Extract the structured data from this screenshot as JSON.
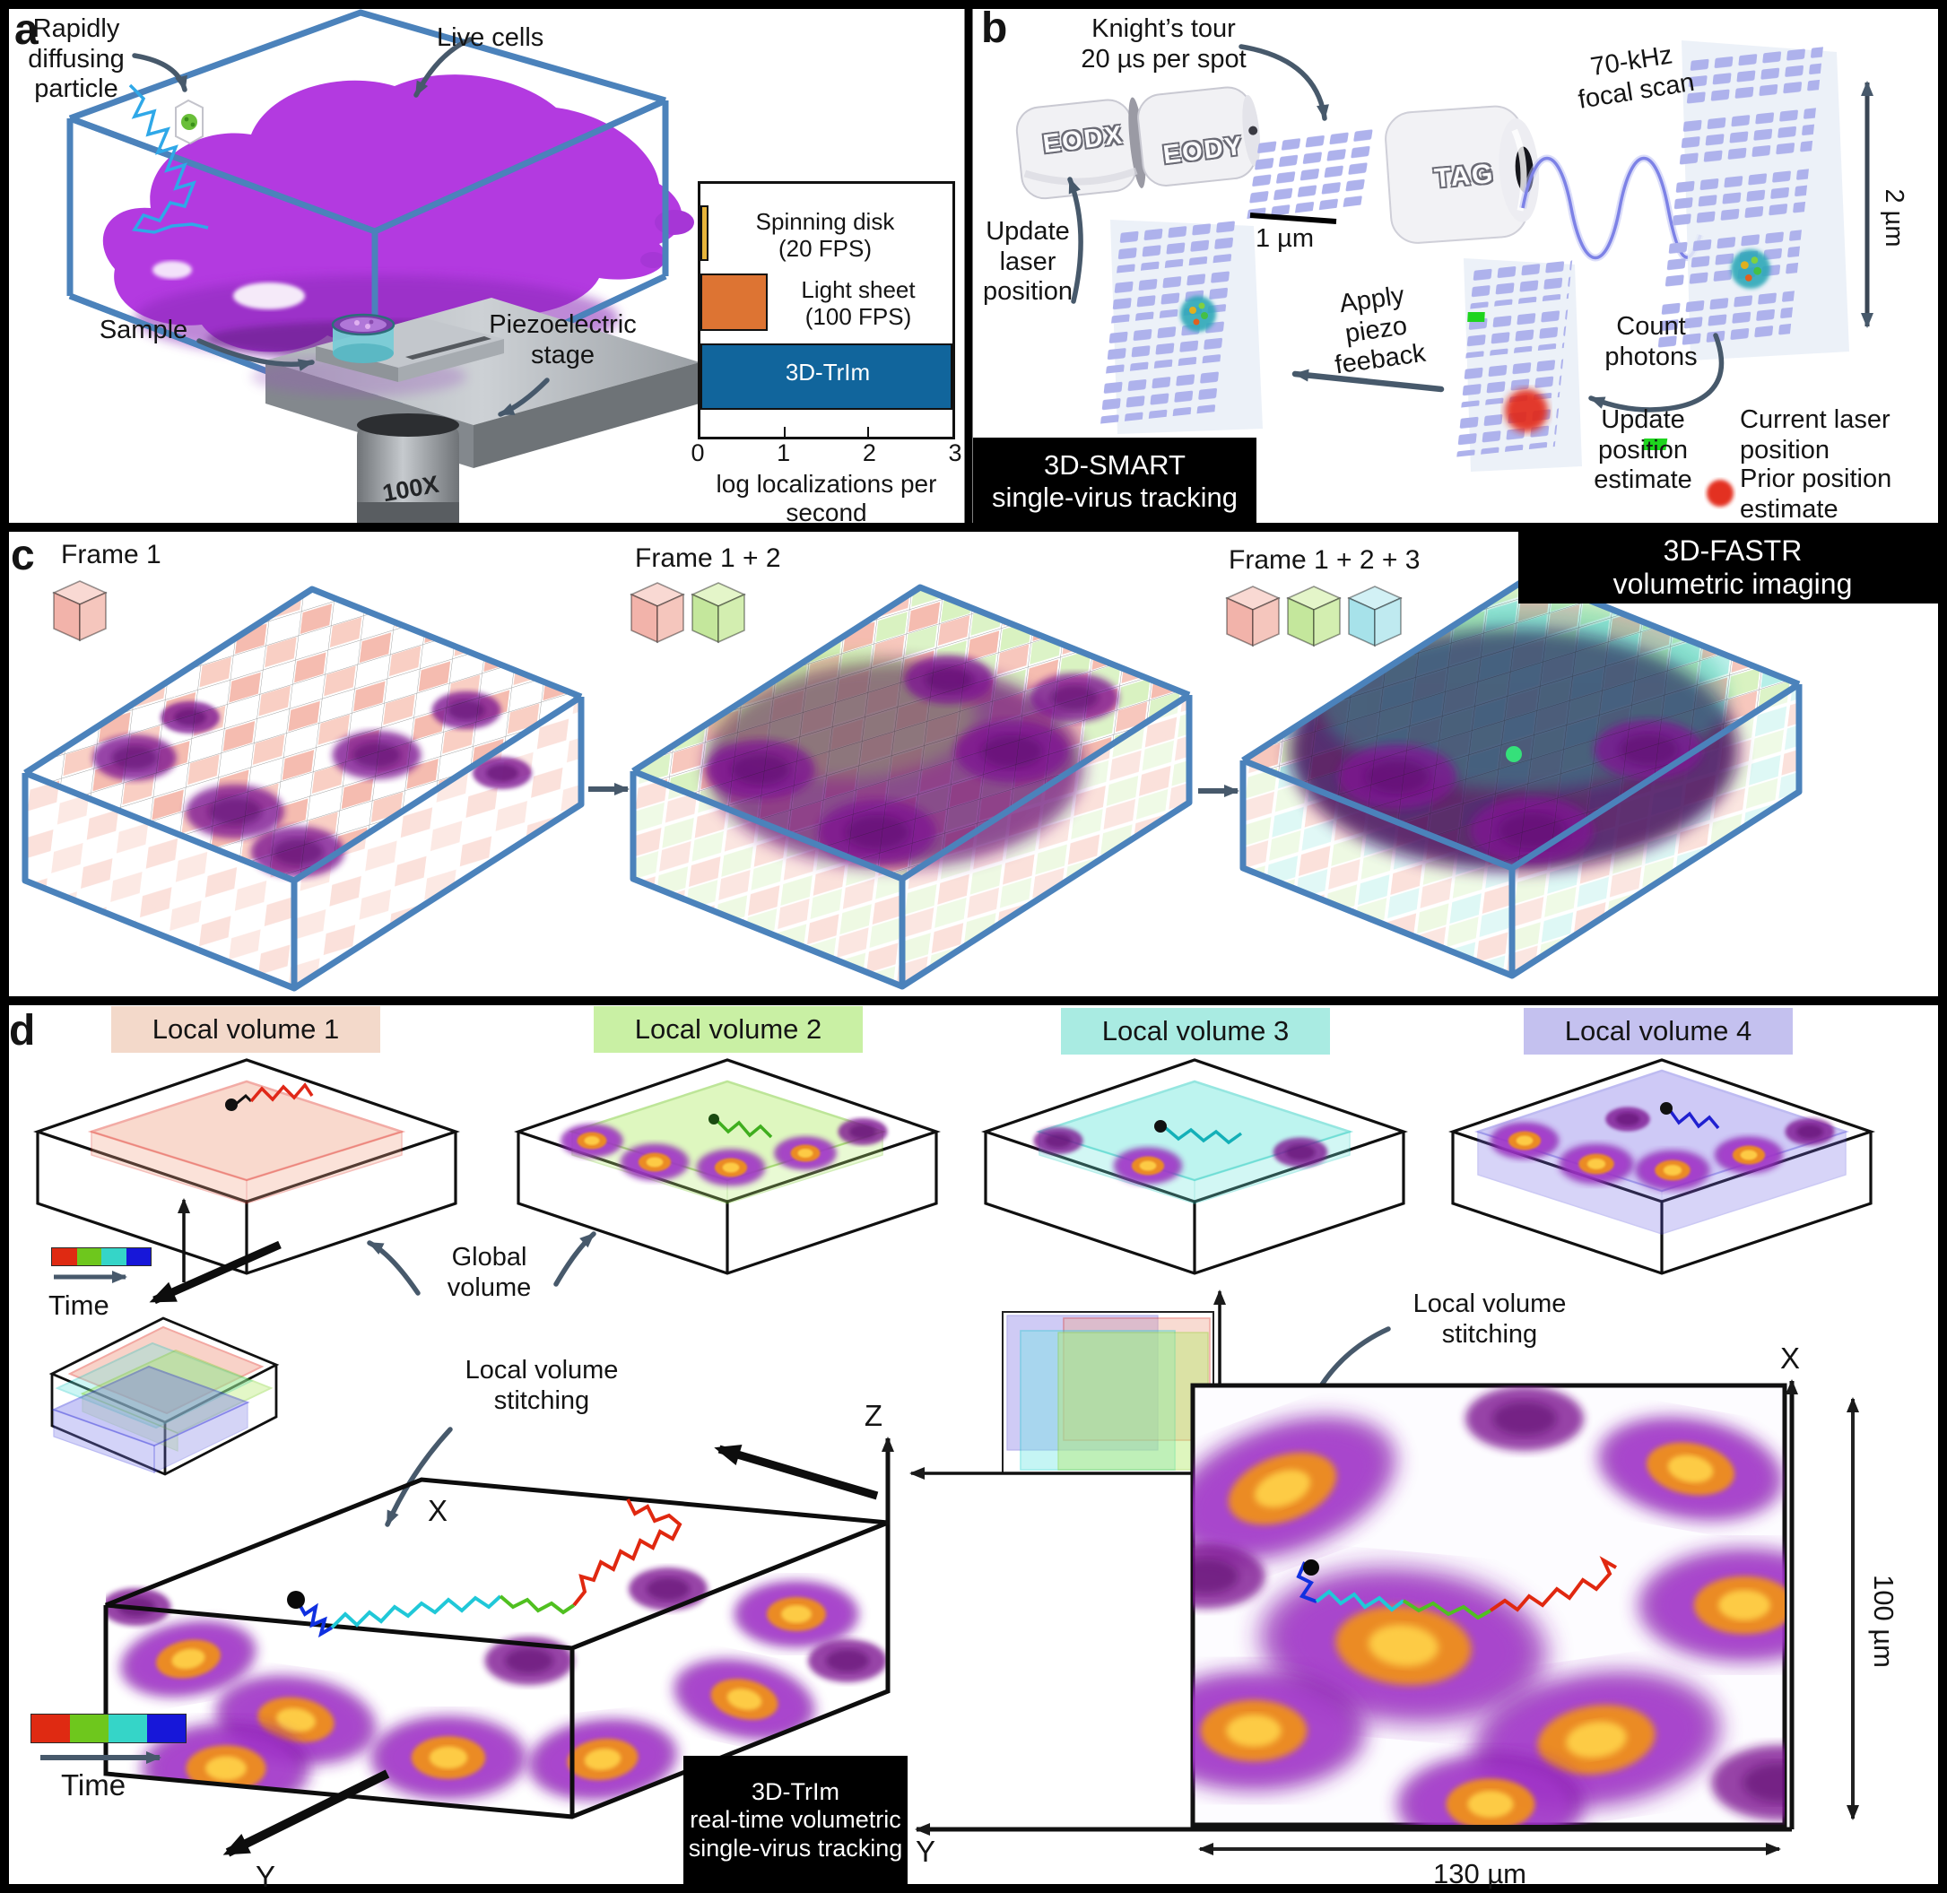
{
  "panel_a": {
    "label": "a",
    "particle": "Rapidly\ndiffusing\nparticle",
    "live_cells": "Live cells",
    "sample": "Sample",
    "stage": "Piezoelectric\nstage",
    "objective": "100X"
  },
  "panel_b": {
    "label": "b",
    "knights_tour": "Knight’s tour\n20 µs per spot",
    "eodx": "EODX",
    "eody": "EODY",
    "scale_1um": "1 µm",
    "tag": "TAG",
    "focal_scan": "70-kHz\nfocal scan",
    "scale_2um": "2 µm",
    "update_laser": "Update\nlaser\nposition",
    "apply_piezo": "Apply\npiezo\nfeeback",
    "count_photons": "Count\nphotons",
    "update_position": "Update\nposition\nestimate",
    "legend_current": "Current laser\nposition",
    "legend_prior": "Prior position\nestimate",
    "title": "3D-SMART\nsingle-virus tracking"
  },
  "panel_c": {
    "label": "c",
    "frame1": "Frame 1",
    "frame2": "Frame 1 + 2",
    "frame3": "Frame 1 + 2 + 3",
    "title": "3D-FASTR\nvolumetric imaging"
  },
  "panel_d": {
    "label": "d",
    "volumes": [
      {
        "label": "Local volume 1",
        "color": "#f3d9ca"
      },
      {
        "label": "Local volume 2",
        "color": "#c9f0a4"
      },
      {
        "label": "Local volume 3",
        "color": "#a9ebe2"
      },
      {
        "label": "Local volume 4",
        "color": "#c4c1ef"
      }
    ],
    "time1": "Time",
    "time2": "Time",
    "time_colors": [
      "#df2a12",
      "#6ec71d",
      "#35d5c8",
      "#1717d9"
    ],
    "global_volume": "Global\nvolume",
    "stitch_left": "Local volume\nstitching",
    "stitch_right": "Local volume\nstitching",
    "axis_z": "Z",
    "axis_x3d": "X",
    "axis_y3d": "Y",
    "axis_x2d": "X",
    "axis_y2d": "Y",
    "scale_130": "130 µm",
    "scale_100": "100 µm",
    "title": "3D-TrIm\nreal-time volumetric\nsingle-virus tracking"
  },
  "chart_data": {
    "type": "bar",
    "orientation": "horizontal",
    "categories": [
      "Spinning disk\n(20 FPS)",
      "Light sheet\n(100 FPS)",
      "3D-TrIm"
    ],
    "values": [
      0.1,
      0.8,
      3.0
    ],
    "bar_colors": [
      "#e7b43b",
      "#dd7433",
      "#11659c"
    ],
    "xlabel": "log localizations per second",
    "xticks": [
      0,
      1,
      2,
      3
    ],
    "xlim": [
      0,
      3
    ],
    "grid": false,
    "legend": false
  },
  "colors": {
    "box_blue": "#4b82bb",
    "cell_purple": "#b33ae0",
    "nucleus_orange": "#f09020",
    "tile_lavender": "#aeb2ec",
    "arrow_gray": "#47596b"
  }
}
